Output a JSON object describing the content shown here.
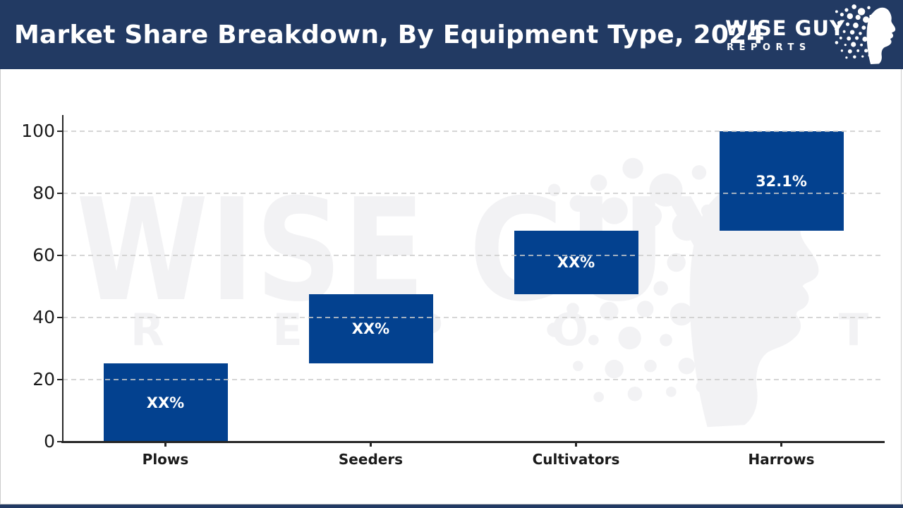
{
  "header": {
    "title": "Market Share Breakdown, By Equipment Type, 2024",
    "logo": {
      "wordmark": "WISE GUY",
      "subtext": "REPORTS"
    }
  },
  "watermark": {
    "wordmark": "WISE GUY",
    "subtext": "R E P O R T S"
  },
  "colors": {
    "header_bg": "#223a63",
    "footer_bg": "#223a63",
    "bar_fill": "#03418f",
    "bar_label": "#ffffff",
    "axis": "#262626",
    "grid": "#d2d2d2",
    "tick_label": "#1a1a1a",
    "watermark": "#f2f2f4"
  },
  "chart_data": {
    "type": "bar",
    "subtype": "waterfall",
    "title": "Market Share Breakdown, By Equipment Type, 2024",
    "categories": [
      "Plows",
      "Seeders",
      "Cultivators",
      "Harrows"
    ],
    "values": [
      25.2,
      22.4,
      20.3,
      32.1
    ],
    "starts": [
      0,
      25.2,
      47.6,
      67.9
    ],
    "bar_labels": [
      "XX%",
      "XX%",
      "XX%",
      "32.1%"
    ],
    "yticks": [
      0,
      20,
      40,
      60,
      80,
      100
    ],
    "ylim": [
      0,
      105
    ],
    "xlabel": "",
    "ylabel": "",
    "grid": "horizontal-dashed",
    "legend": "none"
  }
}
